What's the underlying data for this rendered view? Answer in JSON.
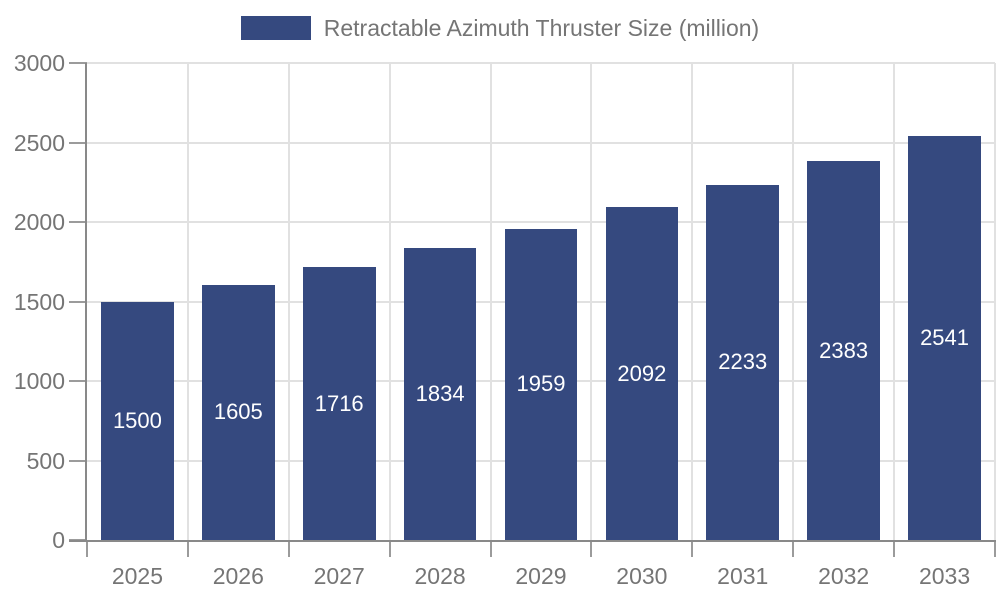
{
  "chart_data": {
    "type": "bar",
    "title": "Retractable Azimuth Thruster Size (million)",
    "categories": [
      "2025",
      "2026",
      "2027",
      "2028",
      "2029",
      "2030",
      "2031",
      "2032",
      "2033"
    ],
    "values": [
      1500,
      1605,
      1716,
      1834,
      1959,
      2092,
      2233,
      2383,
      2541
    ],
    "xlabel": "",
    "ylabel": "",
    "ylim": [
      0,
      3000
    ],
    "yticks": [
      0,
      500,
      1000,
      1500,
      2000,
      2500,
      3000
    ],
    "grid": true,
    "legend": {
      "label": "Retractable Azimuth Thruster Size (million)",
      "position": "top"
    },
    "colors": {
      "bar": "#35497F",
      "bar_label": "#FFFFFF",
      "axis_line": "#898989",
      "tick": "#9B9B9B",
      "grid_line": "#E1E1E1",
      "tick_label": "#757575",
      "legend_text": "#757575",
      "background": "#FFFFFF"
    }
  }
}
